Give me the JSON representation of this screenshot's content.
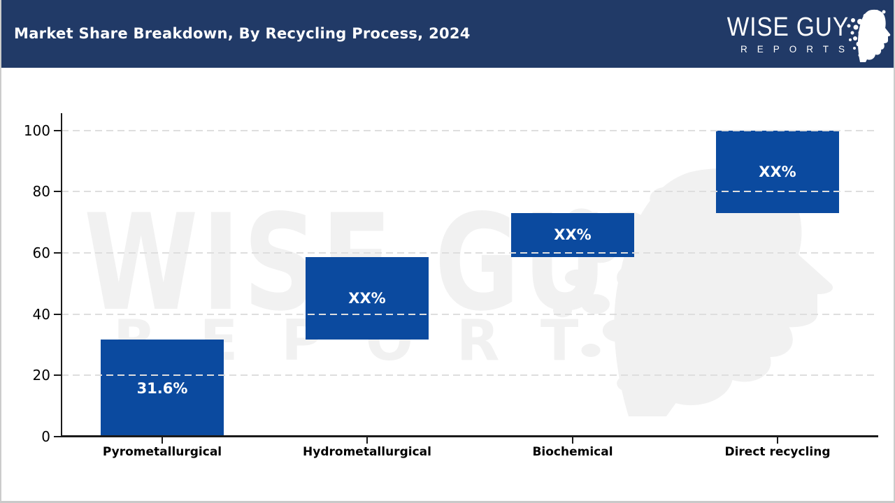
{
  "header": {
    "title": "Market Share Breakdown, By Recycling Process, 2024",
    "logo": {
      "line1": "WISE GUY",
      "line2": "REPORTS"
    }
  },
  "watermark": {
    "line1": "WISE GUY",
    "line2": "REPORTS"
  },
  "colors": {
    "header_bg": "#213a67",
    "bar": "#0b4a9f",
    "grid": "#dedede",
    "axis": "#1a1a1a",
    "bar_label": "#ffffff",
    "tick_label": "#000000",
    "watermark": "#f1f1f1",
    "page_bg": "#ffffff",
    "border": "#cccccc"
  },
  "chart_data": {
    "type": "bar",
    "subtype": "waterfall",
    "title": "Market Share Breakdown, By Recycling Process, 2024",
    "categories": [
      "Pyrometallurgical",
      "Hydrometallurgical",
      "Biochemical",
      "Direct recycling"
    ],
    "segments": [
      {
        "category": "Pyrometallurgical",
        "start": 0,
        "end": 31.6,
        "label": "31.6%"
      },
      {
        "category": "Hydrometallurgical",
        "start": 31.6,
        "end": 58.6,
        "label": "XX%"
      },
      {
        "category": "Biochemical",
        "start": 58.6,
        "end": 73.1,
        "label": "XX%"
      },
      {
        "category": "Direct recycling",
        "start": 73.1,
        "end": 100,
        "label": "XX%"
      }
    ],
    "xlabel": "",
    "ylabel": "",
    "ylim": [
      0,
      105
    ],
    "yticks": [
      0,
      20,
      40,
      60,
      80,
      100
    ],
    "grid": "horizontal-dashed",
    "legend": "none",
    "bar_color": "#0b4a9f",
    "value_label_color": "#ffffff"
  }
}
